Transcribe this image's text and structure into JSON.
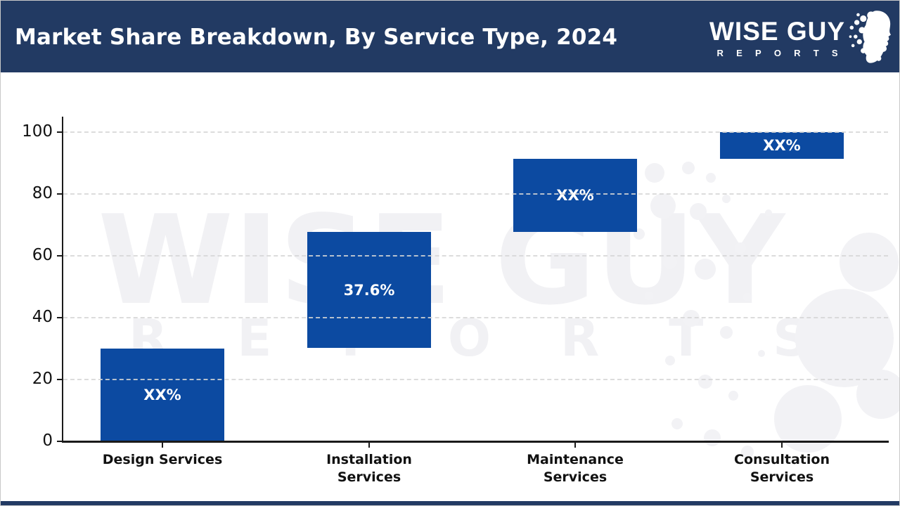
{
  "header": {
    "title": "Market Share Breakdown, By Service Type, 2024",
    "brand": {
      "name": "WISE GUY",
      "sub": "REPORTS"
    }
  },
  "watermark": {
    "name": "WISE GUY",
    "sub": "REPORTS"
  },
  "chart_data": {
    "type": "bar",
    "subtype": "waterfall",
    "title": "Market Share Breakdown, By Service Type, 2024",
    "categories": [
      "Design Services",
      "Installation\nServices",
      "Maintenance\nServices",
      "Consultation\nServices"
    ],
    "bars": [
      {
        "category": "Design Services",
        "start": 0,
        "end": 30.1,
        "value": 30.1,
        "label": "XX%"
      },
      {
        "category": "Installation Services",
        "start": 30.1,
        "end": 67.7,
        "value": 37.6,
        "label": "37.6%"
      },
      {
        "category": "Maintenance Services",
        "start": 67.7,
        "end": 91.4,
        "value": 23.7,
        "label": "XX%"
      },
      {
        "category": "Consultation Services",
        "start": 91.4,
        "end": 100,
        "value": 8.6,
        "label": "XX%"
      }
    ],
    "ylim": [
      0,
      100
    ],
    "yticks": [
      0,
      20,
      40,
      60,
      80,
      100
    ],
    "grid": "horizontal-dashed",
    "legend": "none",
    "colors": {
      "bar": "#0c4aa1",
      "bar_label": "#ffffff",
      "header_bg": "#223a63",
      "grid": "#d6d6d6",
      "axis": "#1a1a1a",
      "watermark": "#f1f1f4"
    }
  }
}
